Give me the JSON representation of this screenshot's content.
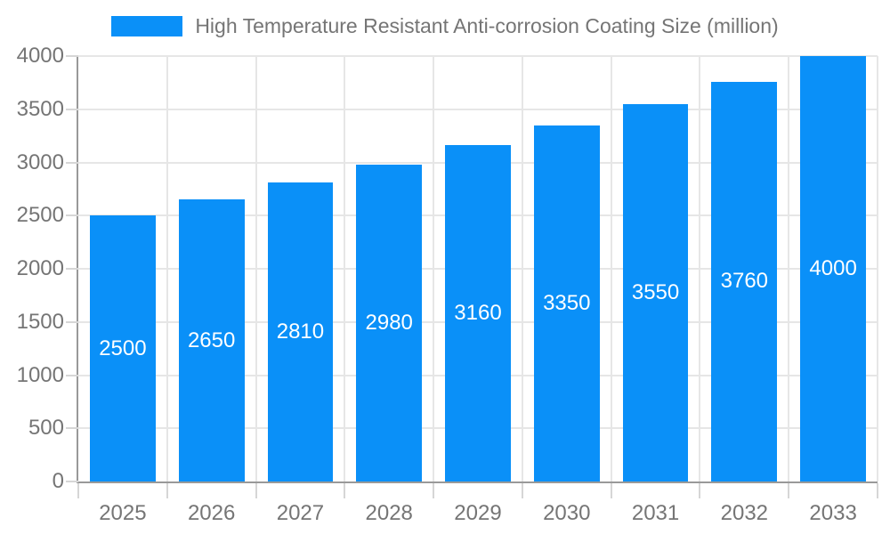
{
  "chart_data": {
    "type": "bar",
    "title": "",
    "legend": {
      "label": "High Temperature Resistant Anti-corrosion Coating Size (million)",
      "position": "top"
    },
    "categories": [
      "2025",
      "2026",
      "2027",
      "2028",
      "2029",
      "2030",
      "2031",
      "2032",
      "2033"
    ],
    "values": [
      2500,
      2650,
      2810,
      2980,
      3160,
      3350,
      3550,
      3760,
      4000
    ],
    "xlabel": "",
    "ylabel": "",
    "ylim": [
      0,
      4000
    ],
    "yticks": [
      0,
      500,
      1000,
      1500,
      2000,
      2500,
      3000,
      3500,
      4000
    ],
    "grid": true,
    "show_value_labels": true,
    "colors": {
      "bar": "#0a90f8",
      "value_label": "#ffffff",
      "axis_text": "#757575",
      "legend_text": "#757575",
      "gridline": "#e6e6e6",
      "tick": "#d6d6d6",
      "axis_line": "#999999",
      "background": "#ffffff"
    }
  }
}
